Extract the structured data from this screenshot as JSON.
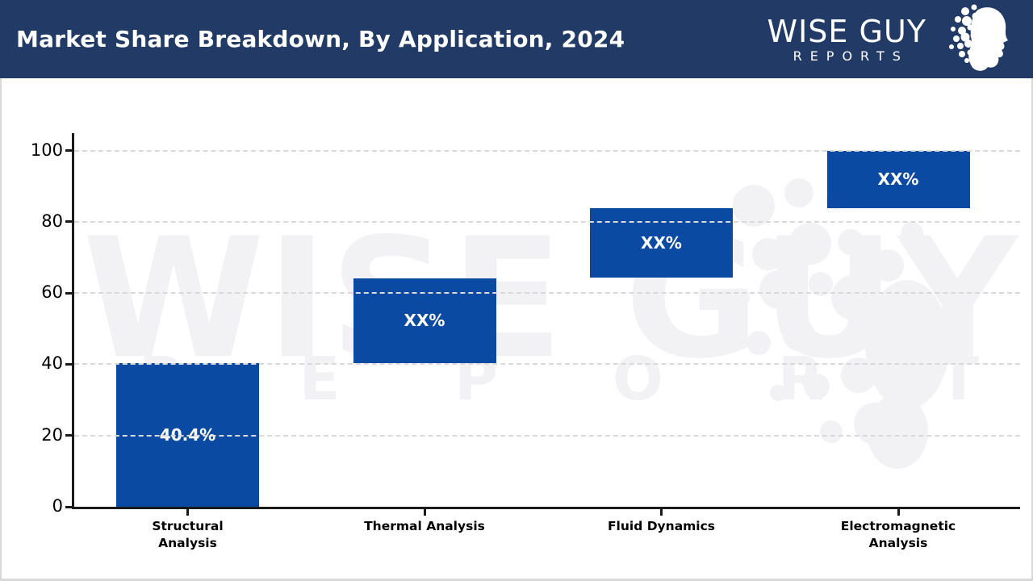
{
  "header": {
    "title": "Market Share Breakdown, By Application, 2024",
    "logo": {
      "line1": "WISE GUY",
      "line2": "REPORTS"
    }
  },
  "watermark": {
    "line1": "WISE GUY",
    "line2": "REPORTS"
  },
  "chart_data": {
    "type": "bar",
    "subtype": "waterfall",
    "title": "Market Share Breakdown, By Application, 2024",
    "xlabel": "",
    "ylabel": "",
    "ylim": [
      0,
      100
    ],
    "y_ticks": [
      0,
      20,
      40,
      60,
      80,
      100
    ],
    "grid": "horizontal-dashed",
    "legend": "none",
    "bar_color": "#0b4aa2",
    "value_label_color": "#ffffff",
    "categories": [
      "Structural Analysis",
      "Thermal Analysis",
      "Fluid Dynamics",
      "Electromagnetic Analysis"
    ],
    "category_label_lines": [
      [
        "Structural",
        "Analysis"
      ],
      [
        "Thermal Analysis"
      ],
      [
        "Fluid Dynamics"
      ],
      [
        "Electromagnetic",
        "Analysis"
      ]
    ],
    "segments": [
      {
        "category": "Structural Analysis",
        "start": 0,
        "end": 40.4,
        "label": "40.4%"
      },
      {
        "category": "Thermal Analysis",
        "start": 40.4,
        "end": 64.2,
        "label": "XX%"
      },
      {
        "category": "Fluid Dynamics",
        "start": 64.3,
        "end": 83.9,
        "label": "XX%"
      },
      {
        "category": "Electromagnetic Analysis",
        "start": 83.9,
        "end": 100,
        "label": "XX%"
      }
    ]
  }
}
